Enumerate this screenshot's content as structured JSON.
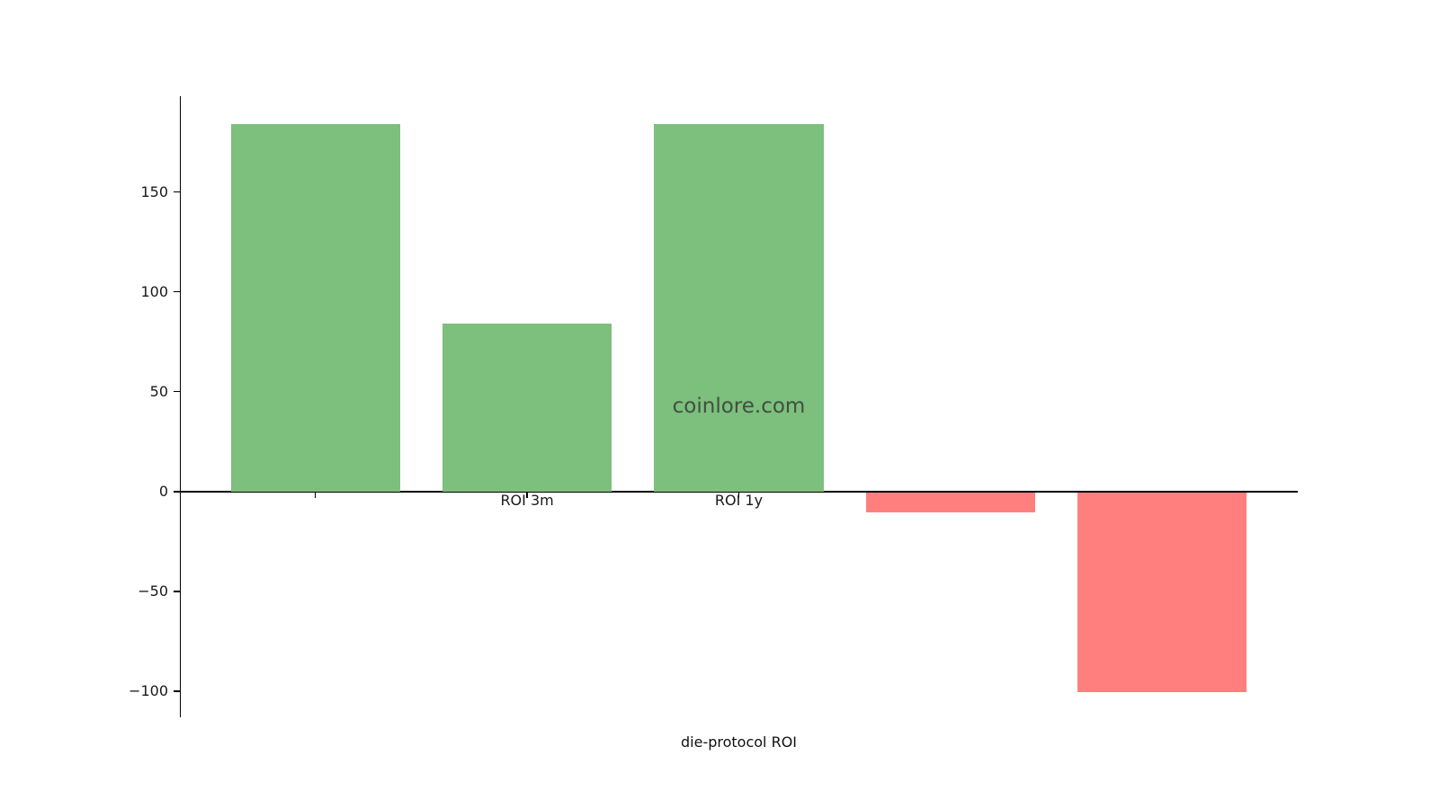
{
  "watermark": {
    "text": "coinlore.com",
    "color": "rgba(50,50,50,0.8)"
  },
  "chart_data": {
    "type": "bar",
    "title": "",
    "xlabel": "die-protocol ROI",
    "ylabel": "",
    "categories": [
      "",
      "ROI 3m",
      "ROI 1y",
      "",
      ""
    ],
    "values": [
      184,
      84,
      184,
      -10,
      -100
    ],
    "series": [
      {
        "name": "die-protocol ROI %",
        "values": [
          184,
          84,
          184,
          -10,
          -100
        ]
      }
    ],
    "positive_color": "#7dbf7d",
    "negative_color": "#ff7f7f",
    "axis_color": "#000000",
    "text_color": "#1a1a1a",
    "grid": false,
    "legend": null,
    "bar_width": 0.8,
    "xlim": [
      -0.64,
      4.64
    ],
    "ylim": [
      -113,
      198
    ],
    "yticks": [
      150,
      100,
      50,
      0,
      -50,
      -100
    ],
    "ytick_labels": [
      "150",
      "100",
      "50",
      "0",
      "−50",
      "−100"
    ],
    "xticks": [
      {
        "pos": 0,
        "label": ""
      },
      {
        "pos": 1,
        "label": "ROI 3m"
      },
      {
        "pos": 2,
        "label": "ROI 1y"
      }
    ]
  }
}
